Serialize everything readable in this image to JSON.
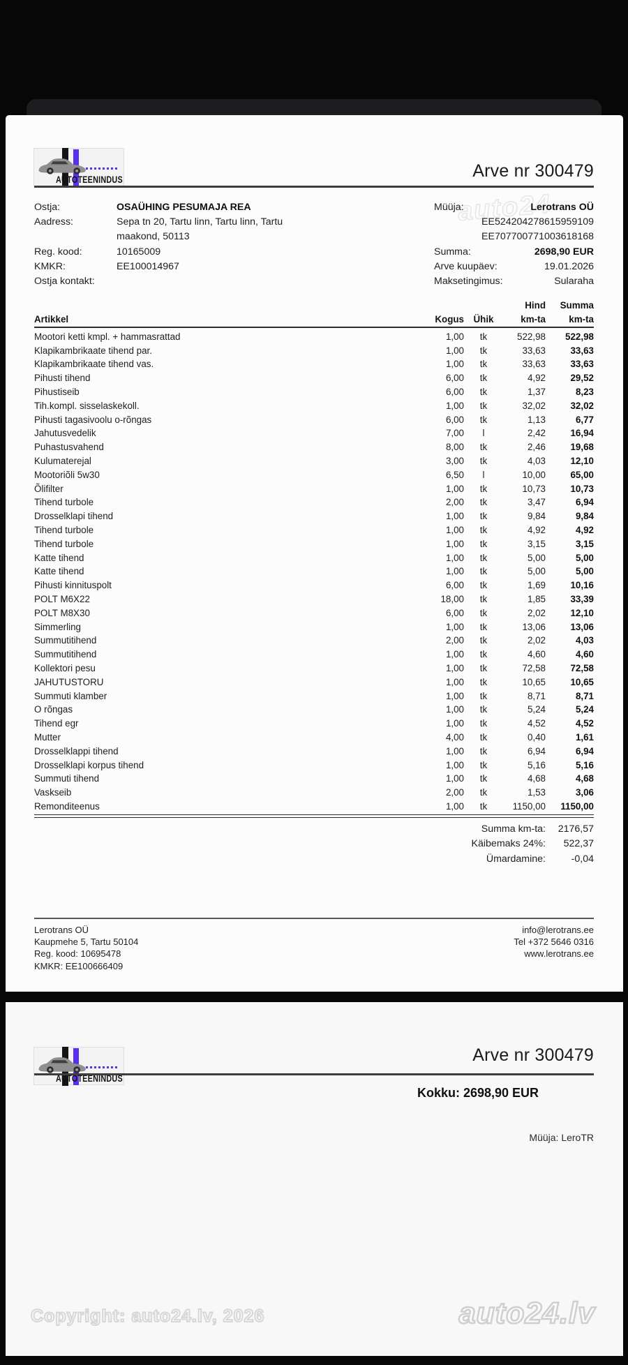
{
  "page1": {
    "invoice_no": "Arve nr 300479",
    "logo": {
      "brand": "AUTOTEENINDUS"
    },
    "buyer": {
      "rows": [
        {
          "label": "Ostja:",
          "value": "OSAÜHING PESUMAJA REA",
          "bold": true
        },
        {
          "label": "Aadress:",
          "value": "Sepa tn 20, Tartu linn, Tartu linn, Tartu"
        },
        {
          "label": "",
          "value": "maakond, 50113"
        },
        {
          "label": "Reg. kood:",
          "value": "10165009"
        },
        {
          "label": "KMKR:",
          "value": "EE100014967"
        },
        {
          "label": "Ostja kontakt:",
          "value": ""
        }
      ]
    },
    "seller": {
      "rows": [
        {
          "label": "Müüja:",
          "value": "Lerotrans OÜ",
          "bold": true
        },
        {
          "label": "",
          "value": "EE524204278615959109"
        },
        {
          "label": "",
          "value": "EE707700771003618168"
        },
        {
          "label": "Summa:",
          "value": "2698,90 EUR",
          "bold": true
        },
        {
          "label": "Arve kuupäev:",
          "value": "19.01.2026"
        },
        {
          "label": "Maksetingimus:",
          "value": "Sularaha"
        }
      ]
    },
    "table": {
      "head": {
        "hind_top": "Hind",
        "summa_top": "Summa",
        "artikkel": "Artikkel",
        "kogus": "Kogus",
        "uhik": "Ühik",
        "hind_bottom": "km-ta",
        "summa_bottom": "km-ta"
      },
      "rows": [
        [
          "Mootori ketti kmpl. + hammasrattad",
          "1,00",
          "tk",
          "522,98",
          "522,98"
        ],
        [
          "Klapikambrikaate tihend par.",
          "1,00",
          "tk",
          "33,63",
          "33,63"
        ],
        [
          "Klapikambrikaate tihend vas.",
          "1,00",
          "tk",
          "33,63",
          "33,63"
        ],
        [
          "Pihusti tihend",
          "6,00",
          "tk",
          "4,92",
          "29,52"
        ],
        [
          "Pihustiseib",
          "6,00",
          "tk",
          "1,37",
          "8,23"
        ],
        [
          "Tih.kompl. sisselaskekoll.",
          "1,00",
          "tk",
          "32,02",
          "32,02"
        ],
        [
          "Pihusti tagasivoolu o-rõngas",
          "6,00",
          "tk",
          "1,13",
          "6,77"
        ],
        [
          "Jahutusvedelik",
          "7,00",
          "l",
          "2,42",
          "16,94"
        ],
        [
          "Puhastusvahend",
          "8,00",
          "tk",
          "2,46",
          "19,68"
        ],
        [
          "Kulumaterejal",
          "3,00",
          "tk",
          "4,03",
          "12,10"
        ],
        [
          "Mootoriõli 5w30",
          "6,50",
          "l",
          "10,00",
          "65,00"
        ],
        [
          "Õlifilter",
          "1,00",
          "tk",
          "10,73",
          "10,73"
        ],
        [
          "Tihend turbole",
          "2,00",
          "tk",
          "3,47",
          "6,94"
        ],
        [
          "Drosselklapi tihend",
          "1,00",
          "tk",
          "9,84",
          "9,84"
        ],
        [
          "Tihend turbole",
          "1,00",
          "tk",
          "4,92",
          "4,92"
        ],
        [
          "Tihend turbole",
          "1,00",
          "tk",
          "3,15",
          "3,15"
        ],
        [
          "Katte tihend",
          "1,00",
          "tk",
          "5,00",
          "5,00"
        ],
        [
          "Katte tihend",
          "1,00",
          "tk",
          "5,00",
          "5,00"
        ],
        [
          "Pihusti kinnituspolt",
          "6,00",
          "tk",
          "1,69",
          "10,16"
        ],
        [
          "POLT M6X22",
          "18,00",
          "tk",
          "1,85",
          "33,39"
        ],
        [
          "POLT M8X30",
          "6,00",
          "tk",
          "2,02",
          "12,10"
        ],
        [
          "Simmerling",
          "1,00",
          "tk",
          "13,06",
          "13,06"
        ],
        [
          "Summutitihend",
          "2,00",
          "tk",
          "2,02",
          "4,03"
        ],
        [
          "Summutitihend",
          "1,00",
          "tk",
          "4,60",
          "4,60"
        ],
        [
          "Kollektori pesu",
          "1,00",
          "tk",
          "72,58",
          "72,58"
        ],
        [
          "JAHUTUSTORU",
          "1,00",
          "tk",
          "10,65",
          "10,65"
        ],
        [
          "Summuti klamber",
          "1,00",
          "tk",
          "8,71",
          "8,71"
        ],
        [
          "O rõngas",
          "1,00",
          "tk",
          "5,24",
          "5,24"
        ],
        [
          "Tihend egr",
          "1,00",
          "tk",
          "4,52",
          "4,52"
        ],
        [
          "Mutter",
          "4,00",
          "tk",
          "0,40",
          "1,61"
        ],
        [
          "Drosselklappi tihend",
          "1,00",
          "tk",
          "6,94",
          "6,94"
        ],
        [
          "Drosselklapi korpus tihend",
          "1,00",
          "tk",
          "5,16",
          "5,16"
        ],
        [
          "Summuti tihend",
          "1,00",
          "tk",
          "4,68",
          "4,68"
        ],
        [
          "Vaskseib",
          "2,00",
          "tk",
          "1,53",
          "3,06"
        ],
        [
          "Remonditeenus",
          "1,00",
          "tk",
          "1150,00",
          "1150,00"
        ]
      ]
    },
    "totals": [
      {
        "label": "Summa km-ta:",
        "value": "2176,57"
      },
      {
        "label": "Käibemaks 24%:",
        "value": "522,37"
      },
      {
        "label": "Ümardamine:",
        "value": "-0,04"
      }
    ],
    "footer": {
      "left": [
        "Lerotrans OÜ",
        "Kaupmehe 5, Tartu 50104",
        "Reg. kood: 10695478",
        "KMKR: EE100666409"
      ],
      "right": [
        "info@lerotrans.ee",
        "Tel +372 5646 0316",
        "www.lerotrans.ee"
      ]
    },
    "watermark_text": "auto24"
  },
  "page2": {
    "invoice_no": "Arve nr 300479",
    "logo_brand": "AUTOTEENINDUS",
    "total_line": "Kokku: 2698,90 EUR",
    "seller_line": "Müüja: LeroTR"
  },
  "overlay": {
    "copyright": "Copyright: auto24.lv, 2026",
    "brand": "auto24.lv"
  },
  "colors": {
    "accent_purple": "#5b2ff0",
    "page_bg": "#fcfcfc",
    "viewer_bg": "#070708"
  }
}
